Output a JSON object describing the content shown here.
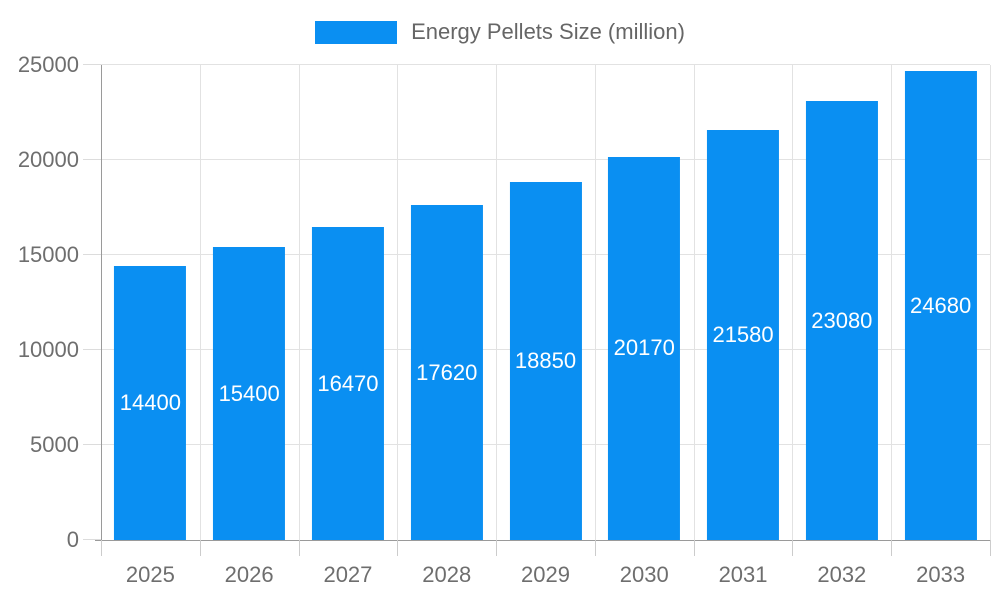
{
  "chart_data": {
    "type": "bar",
    "title": "",
    "legend": "Energy Pellets Size (million)",
    "legend_position": "top-center",
    "categories": [
      "2025",
      "2026",
      "2027",
      "2028",
      "2029",
      "2030",
      "2031",
      "2032",
      "2033"
    ],
    "series": [
      {
        "name": "Energy Pellets Size (million)",
        "values": [
          14400,
          15400,
          16470,
          17620,
          18850,
          20170,
          21580,
          23080,
          24680
        ]
      }
    ],
    "value_labels_shown": true,
    "xlabel": "",
    "ylabel": "",
    "ylim": [
      0,
      25000
    ],
    "yticks": [
      0,
      5000,
      10000,
      15000,
      20000,
      25000
    ],
    "grid": "both-horizontal-and-vertical",
    "colors": {
      "bar": "#0a8ff2",
      "grid": "#e2e2e2",
      "axis_line": "#9a9a9a",
      "axis_text": "#6e6e6e",
      "bar_value_text": "#ffffff",
      "legend_text": "#666666",
      "background": "#ffffff"
    }
  }
}
